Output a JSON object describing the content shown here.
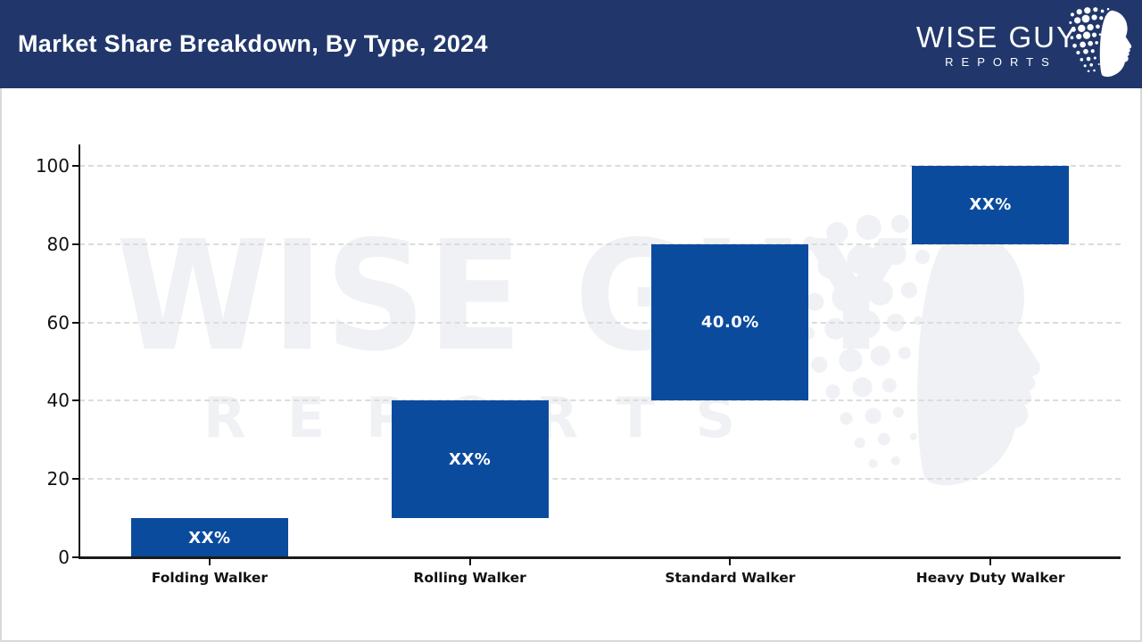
{
  "header": {
    "title": "Market Share Breakdown, By Type, 2024",
    "logo": {
      "line1": "WISE GUY",
      "line2": "REPORTS"
    }
  },
  "watermark": {
    "line1": "WISE GUY",
    "line2": "REPORTS"
  },
  "chart_data": {
    "type": "bar",
    "subtype": "floating-waterfall",
    "title": "Market Share Breakdown, By Type, 2024",
    "categories": [
      "Folding Walker",
      "Rolling Walker",
      "Standard Walker",
      "Heavy Duty Walker"
    ],
    "segments": [
      {
        "category": "Folding Walker",
        "start": 0,
        "end": 10,
        "label": "XX%"
      },
      {
        "category": "Rolling Walker",
        "start": 10,
        "end": 40,
        "label": "XX%"
      },
      {
        "category": "Standard Walker",
        "start": 40,
        "end": 80,
        "label": "40.0%"
      },
      {
        "category": "Heavy Duty Walker",
        "start": 80,
        "end": 100,
        "label": "XX%"
      }
    ],
    "ylim": [
      0,
      100
    ],
    "yticks": [
      0,
      20,
      40,
      60,
      80,
      100
    ],
    "xlabel": "",
    "ylabel": "",
    "legend": null,
    "grid": "horizontal-dashed"
  },
  "colors": {
    "header_bg": "#21376B",
    "bar": "#0B4B9D",
    "bar_label": "#FFFFFF",
    "grid": "#DCDCDC",
    "axis": "#1A1A1A",
    "watermark": "#F0F1F4",
    "page_border": "#D9D9D9",
    "title_text": "#FFFFFF"
  }
}
